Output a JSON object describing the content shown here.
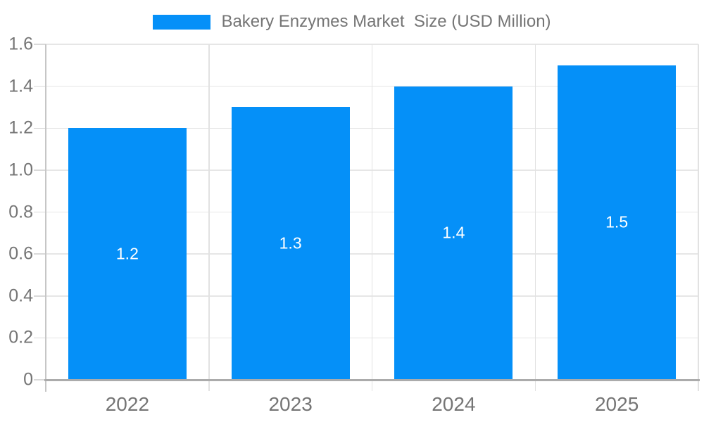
{
  "legend": {
    "label": "Bakery Enzymes Market  Size (USD Million)"
  },
  "colors": {
    "bar": "#0590f8",
    "bar_label_text": "#ffffff",
    "tick_text": "#757575",
    "legend_text": "#757575",
    "gridline": "#e6e6e6",
    "separator": "#e2e2e2",
    "tick_mark": "#d9d9d9",
    "y_axis_line": "#c6c6c6",
    "x_axis_line": "#ababab",
    "background": "#ffffff"
  },
  "chart_data": {
    "type": "bar",
    "title": "Bakery Enzymes Market  Size (USD Million)",
    "categories": [
      "2022",
      "2023",
      "2024",
      "2025"
    ],
    "values": [
      1.2,
      1.3,
      1.4,
      1.5
    ],
    "bar_labels": [
      "1.2",
      "1.3",
      "1.4",
      "1.5"
    ],
    "xlabel": "",
    "ylabel": "",
    "ylim": [
      0,
      1.6
    ],
    "yticks": [
      0,
      0.2,
      0.4,
      0.6,
      0.8,
      1.0,
      1.2,
      1.4,
      1.6
    ],
    "ytick_labels": [
      "0",
      "0.2",
      "0.4",
      "0.6",
      "0.8",
      "1.0",
      "1.2",
      "1.4",
      "1.6"
    ],
    "grid": true,
    "legend_position": "top",
    "value_label_position": "inside-middle"
  }
}
